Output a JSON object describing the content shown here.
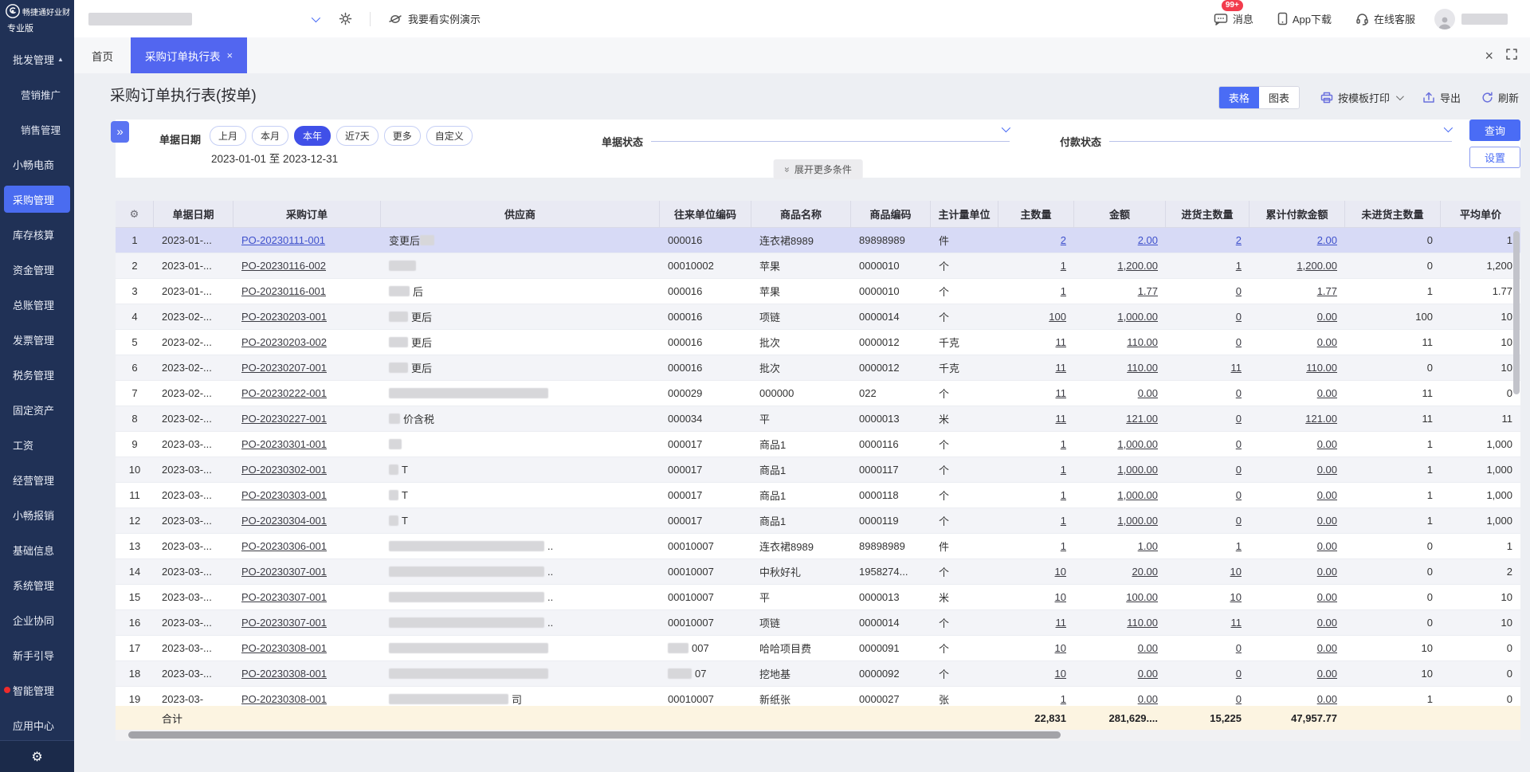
{
  "brand": {
    "name": "畅捷通好业财",
    "edition": "专业版"
  },
  "icons": {
    "close": "×",
    "double_right": "»",
    "gear": "⚙",
    "up_triangle": "▲",
    "fullscreen": "⛶"
  },
  "topbar": {
    "demo_label": "我要看实例演示",
    "messages_label": "消息",
    "messages_badge": "99+",
    "app_label": "App下载",
    "service_label": "在线客服"
  },
  "tabs": {
    "home": "首页",
    "current": "采购订单执行表"
  },
  "sidebar": {
    "items": [
      {
        "label": "批发管理",
        "arrow": true
      },
      {
        "label": "营销推广",
        "sub": true
      },
      {
        "label": "销售管理",
        "sub": true
      },
      {
        "label": "小畅电商"
      },
      {
        "label": "采购管理",
        "active": true
      },
      {
        "label": "库存核算"
      },
      {
        "label": "资金管理"
      },
      {
        "label": "总账管理"
      },
      {
        "label": "发票管理"
      },
      {
        "label": "税务管理"
      },
      {
        "label": "固定资产"
      },
      {
        "label": "工资"
      },
      {
        "label": "经营管理"
      },
      {
        "label": "小畅报销"
      },
      {
        "label": "基础信息"
      },
      {
        "label": "系统管理"
      },
      {
        "label": "企业协同"
      },
      {
        "label": "新手引导"
      },
      {
        "label": "智能管理",
        "dot": true
      },
      {
        "label": "应用中心"
      }
    ]
  },
  "page": {
    "title": "采购订单执行表(按单)"
  },
  "toolbar": {
    "view_table": "表格",
    "view_chart": "图表",
    "print": "按模板打印",
    "export": "导出",
    "refresh": "刷新"
  },
  "filters": {
    "date_label": "单据日期",
    "date_pills": [
      {
        "label": "上月"
      },
      {
        "label": "本月"
      },
      {
        "label": "本年",
        "active": true
      },
      {
        "label": "近7天"
      },
      {
        "label": "更多"
      },
      {
        "label": "自定义"
      }
    ],
    "date_range": "2023-01-01 至 2023-12-31",
    "status_label": "单据状态",
    "payment_label": "付款状态",
    "query_button": "查询",
    "settings_button": "设置",
    "expand_more": "展开更多条件"
  },
  "table": {
    "columns": [
      "单据日期",
      "采购订单",
      "供应商",
      "往来单位编码",
      "商品名称",
      "商品编码",
      "主计量单位",
      "主数量",
      "金额",
      "进货主数量",
      "累计付款金额",
      "未进货主数量",
      "平均单价"
    ],
    "rows": [
      {
        "no": "1",
        "date": "2023-01-...",
        "po": "PO-20230111-001",
        "sup_pre": 0,
        "sup": "变更后",
        "sup_post": 18,
        "code_pre": 0,
        "code": "000016",
        "name": "连衣裙8989",
        "pcode": "89898989",
        "unit": "件",
        "qty": "2",
        "amt": "2.00",
        "rcv": "2",
        "paid": "2.00",
        "un": "0",
        "price": "1",
        "selected": true
      },
      {
        "no": "2",
        "date": "2023-01-...",
        "po": "PO-20230116-002",
        "sup_pre": 34,
        "sup": "",
        "sup_post": 0,
        "code_pre": 0,
        "code": "00010002",
        "name": "苹果",
        "pcode": "0000010",
        "unit": "个",
        "qty": "1",
        "amt": "1,200.00",
        "rcv": "1",
        "paid": "1,200.00",
        "un": "0",
        "price": "1,200"
      },
      {
        "no": "3",
        "date": "2023-01-...",
        "po": "PO-20230116-001",
        "sup_pre": 26,
        "sup": "后",
        "sup_post": 0,
        "code_pre": 0,
        "code": "000016",
        "name": "苹果",
        "pcode": "0000010",
        "unit": "个",
        "qty": "1",
        "amt": "1.77",
        "rcv": "0",
        "paid": "1.77",
        "un": "1",
        "price": "1.77"
      },
      {
        "no": "4",
        "date": "2023-02-...",
        "po": "PO-20230203-001",
        "sup_pre": 24,
        "sup": "更后",
        "sup_post": 0,
        "code_pre": 0,
        "code": "000016",
        "name": "项链",
        "pcode": "0000014",
        "unit": "个",
        "qty": "100",
        "amt": "1,000.00",
        "rcv": "0",
        "paid": "0.00",
        "un": "100",
        "price": "10"
      },
      {
        "no": "5",
        "date": "2023-02-...",
        "po": "PO-20230203-002",
        "sup_pre": 24,
        "sup": "更后",
        "sup_post": 0,
        "code_pre": 0,
        "code": "000016",
        "name": "批次",
        "pcode": "0000012",
        "unit": "千克",
        "qty": "11",
        "amt": "110.00",
        "rcv": "0",
        "paid": "0.00",
        "un": "11",
        "price": "10"
      },
      {
        "no": "6",
        "date": "2023-02-...",
        "po": "PO-20230207-001",
        "sup_pre": 24,
        "sup": "更后",
        "sup_post": 0,
        "code_pre": 0,
        "code": "000016",
        "name": "批次",
        "pcode": "0000012",
        "unit": "千克",
        "qty": "11",
        "amt": "110.00",
        "rcv": "11",
        "paid": "110.00",
        "un": "0",
        "price": "10"
      },
      {
        "no": "7",
        "date": "2023-02-...",
        "po": "PO-20230222-001",
        "sup_pre": 200,
        "sup": "",
        "sup_post": 0,
        "code_pre": 0,
        "code": "000029",
        "name": "000000",
        "pcode": "022",
        "unit": "个",
        "qty": "11",
        "amt": "0.00",
        "rcv": "0",
        "paid": "0.00",
        "un": "11",
        "price": "0"
      },
      {
        "no": "8",
        "date": "2023-02-...",
        "po": "PO-20230227-001",
        "sup_pre": 14,
        "sup": "价含税",
        "sup_post": 0,
        "code_pre": 0,
        "code": "000034",
        "name": "平",
        "pcode": "0000013",
        "unit": "米",
        "qty": "11",
        "amt": "121.00",
        "rcv": "0",
        "paid": "121.00",
        "un": "11",
        "price": "11"
      },
      {
        "no": "9",
        "date": "2023-03-...",
        "po": "PO-20230301-001",
        "sup_pre": 16,
        "sup": "",
        "sup_post": 0,
        "code_pre": 0,
        "code": "000017",
        "name": "商品1",
        "pcode": "0000116",
        "unit": "个",
        "qty": "1",
        "amt": "1,000.00",
        "rcv": "0",
        "paid": "0.00",
        "un": "1",
        "price": "1,000"
      },
      {
        "no": "10",
        "date": "2023-03-...",
        "po": "PO-20230302-001",
        "sup_pre": 12,
        "sup": "T",
        "sup_post": 0,
        "code_pre": 0,
        "code": "000017",
        "name": "商品1",
        "pcode": "0000117",
        "unit": "个",
        "qty": "1",
        "amt": "1,000.00",
        "rcv": "0",
        "paid": "0.00",
        "un": "1",
        "price": "1,000"
      },
      {
        "no": "11",
        "date": "2023-03-...",
        "po": "PO-20230303-001",
        "sup_pre": 12,
        "sup": "T",
        "sup_post": 0,
        "code_pre": 0,
        "code": "000017",
        "name": "商品1",
        "pcode": "0000118",
        "unit": "个",
        "qty": "1",
        "amt": "1,000.00",
        "rcv": "0",
        "paid": "0.00",
        "un": "1",
        "price": "1,000"
      },
      {
        "no": "12",
        "date": "2023-03-...",
        "po": "PO-20230304-001",
        "sup_pre": 12,
        "sup": "T",
        "sup_post": 0,
        "code_pre": 0,
        "code": "000017",
        "name": "商品1",
        "pcode": "0000119",
        "unit": "个",
        "qty": "1",
        "amt": "1,000.00",
        "rcv": "0",
        "paid": "0.00",
        "un": "1",
        "price": "1,000"
      },
      {
        "no": "13",
        "date": "2023-03-...",
        "po": "PO-20230306-001",
        "sup_pre": 195,
        "sup": "..",
        "sup_post": 0,
        "code_pre": 0,
        "code": "00010007",
        "name": "连衣裙8989",
        "pcode": "89898989",
        "unit": "件",
        "qty": "1",
        "amt": "1.00",
        "rcv": "1",
        "paid": "0.00",
        "un": "0",
        "price": "1"
      },
      {
        "no": "14",
        "date": "2023-03-...",
        "po": "PO-20230307-001",
        "sup_pre": 195,
        "sup": "..",
        "sup_post": 0,
        "code_pre": 0,
        "code": "00010007",
        "name": "中秋好礼",
        "pcode": "1958274...",
        "unit": "个",
        "qty": "10",
        "amt": "20.00",
        "rcv": "10",
        "paid": "0.00",
        "un": "0",
        "price": "2"
      },
      {
        "no": "15",
        "date": "2023-03-...",
        "po": "PO-20230307-001",
        "sup_pre": 195,
        "sup": "..",
        "sup_post": 0,
        "code_pre": 0,
        "code": "00010007",
        "name": "平",
        "pcode": "0000013",
        "unit": "米",
        "qty": "10",
        "amt": "100.00",
        "rcv": "10",
        "paid": "0.00",
        "un": "0",
        "price": "10"
      },
      {
        "no": "16",
        "date": "2023-03-...",
        "po": "PO-20230307-001",
        "sup_pre": 195,
        "sup": "..",
        "sup_post": 0,
        "code_pre": 0,
        "code": "00010007",
        "name": "项链",
        "pcode": "0000014",
        "unit": "个",
        "qty": "11",
        "amt": "110.00",
        "rcv": "11",
        "paid": "0.00",
        "un": "0",
        "price": "10"
      },
      {
        "no": "17",
        "date": "2023-03-...",
        "po": "PO-20230308-001",
        "sup_pre": 200,
        "sup": "",
        "sup_post": 0,
        "code_pre": 26,
        "code": "007",
        "name": "哈哈项目费",
        "pcode": "0000091",
        "unit": "个",
        "qty": "10",
        "amt": "0.00",
        "rcv": "0",
        "paid": "0.00",
        "un": "10",
        "price": "0"
      },
      {
        "no": "18",
        "date": "2023-03-...",
        "po": "PO-20230308-001",
        "sup_pre": 200,
        "sup": "",
        "sup_post": 0,
        "code_pre": 30,
        "code": "07",
        "name": "挖地基",
        "pcode": "0000092",
        "unit": "个",
        "qty": "10",
        "amt": "0.00",
        "rcv": "0",
        "paid": "0.00",
        "un": "10",
        "price": "0"
      },
      {
        "no": "19",
        "date": "2023-03-",
        "po": "PO-20230308-001",
        "sup_pre": 150,
        "sup": "司",
        "sup_post": 0,
        "code_pre": 0,
        "code": "00010007",
        "name": "新纸张",
        "pcode": "0000027",
        "unit": "张",
        "qty": "1",
        "amt": "0.00",
        "rcv": "0",
        "paid": "0.00",
        "un": "1",
        "price": "0"
      }
    ],
    "totals": {
      "label": "合计",
      "qty": "22,831",
      "amt": "281,629....",
      "rcv": "15,225",
      "paid": "47,957.77"
    }
  }
}
